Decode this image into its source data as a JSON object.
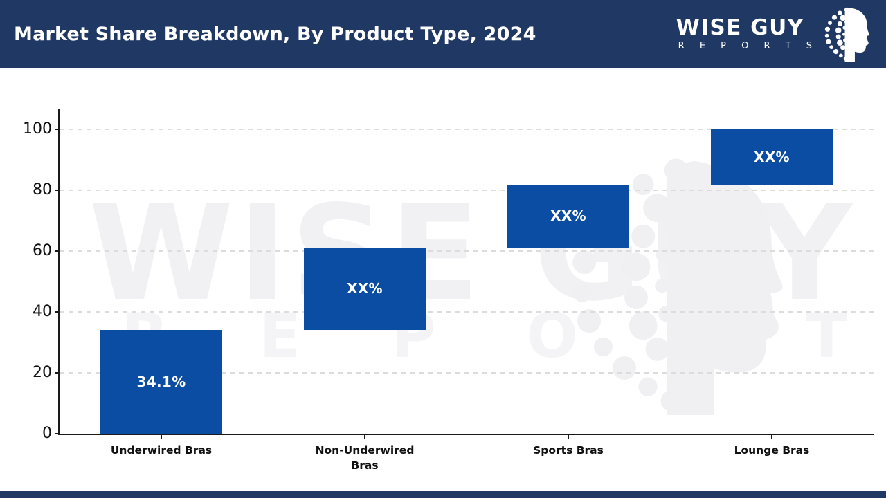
{
  "header": {
    "title": "Market Share Breakdown, By Product Type, 2024",
    "logo": {
      "line1": "WISE GUY",
      "line2": "R E P O R T S"
    }
  },
  "watermark": {
    "line1": "WISE GUY",
    "line2": "R E P O R T S"
  },
  "chart_data": {
    "type": "bar",
    "subtype": "floating-waterfall",
    "title": "Market Share Breakdown, By Product Type, 2024",
    "categories": [
      "Underwired Bras",
      "Non-Underwired Bras",
      "Sports Bras",
      "Lounge Bras"
    ],
    "segments": [
      {
        "category": "Underwired Bras",
        "start": 0,
        "end": 34.1,
        "label": "34.1%"
      },
      {
        "category": "Non-Underwired Bras",
        "start": 34.1,
        "end": 61.2,
        "label": "XX%"
      },
      {
        "category": "Sports Bras",
        "start": 61.2,
        "end": 81.8,
        "label": "XX%"
      },
      {
        "category": "Lounge Bras",
        "start": 81.8,
        "end": 100,
        "label": "XX%"
      }
    ],
    "xlabel": "",
    "ylabel": "",
    "ylim": [
      0,
      100
    ],
    "yticks": [
      0,
      20,
      40,
      60,
      80,
      100
    ],
    "grid": "horizontal-dashed",
    "legend": "none"
  },
  "colors": {
    "header_navy": "#203864",
    "footer_navy": "#203864",
    "bar_blue": "#0b4da2",
    "bar_label": "#ffffff",
    "grid_gray": "#dcdcdc",
    "axis_black": "#1a1a1a",
    "watermark_gray": "#f1f1f4"
  }
}
